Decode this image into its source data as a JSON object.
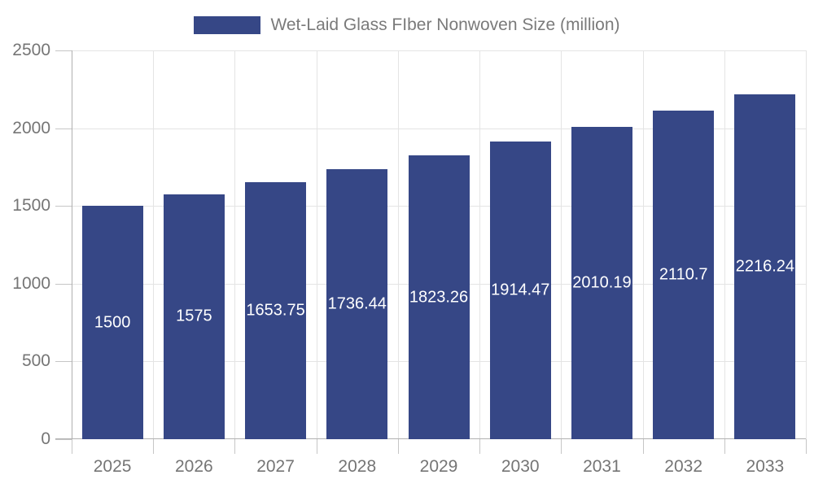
{
  "legend": {
    "label": "Wet-Laid Glass FIber Nonwoven Size (million)"
  },
  "chart_data": {
    "type": "bar",
    "title": "",
    "xlabel": "",
    "ylabel": "",
    "categories": [
      "2025",
      "2026",
      "2027",
      "2028",
      "2029",
      "2030",
      "2031",
      "2032",
      "2033"
    ],
    "values": [
      1500,
      1575,
      1653.75,
      1736.44,
      1823.26,
      1914.47,
      2010.19,
      2110.7,
      2216.24
    ],
    "value_labels": [
      "1500",
      "1575",
      "1653.75",
      "1736.44",
      "1823.26",
      "1914.47",
      "2010.19",
      "2110.7",
      "2216.24"
    ],
    "series_name": "Wet-Laid Glass FIber Nonwoven Size (million)",
    "ylim": [
      0,
      2500
    ],
    "yticks": [
      0,
      500,
      1000,
      1500,
      2000,
      2500
    ],
    "ytick_labels": [
      "0",
      "500",
      "1000",
      "1500",
      "2000",
      "2500"
    ],
    "grid": true,
    "legend_position": "top",
    "colors": {
      "bar": "#364786",
      "value_label": "#ffffff",
      "gridline": "#e4e4e4",
      "axis_line": "#b0b0b0",
      "tick_mark": "#c6c6c6",
      "tick_text": "#757575",
      "legend_text": "#7a7a7a"
    }
  }
}
